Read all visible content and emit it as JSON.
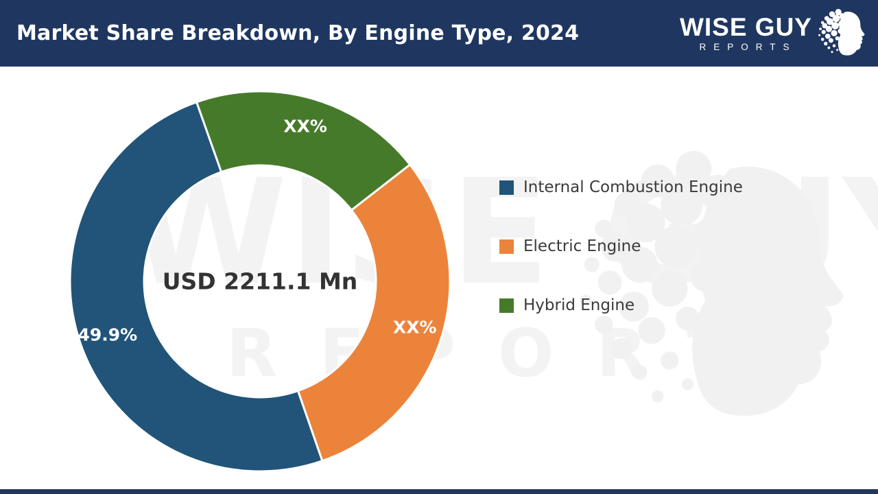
{
  "header": {
    "title": "Market Share Breakdown, By Engine Type, 2024",
    "logo": {
      "name": "WISE GUY",
      "sub": "REPORTS"
    }
  },
  "watermark": {
    "line1": "WISE GUY",
    "line2": "REPORTS"
  },
  "chart_data": {
    "type": "pie",
    "subtype": "donut",
    "title": "Market Share Breakdown, By Engine Type, 2024",
    "center_label": "USD 2211.1 Mn",
    "donut_hole_ratio": 0.61,
    "start_angle_deg": -19.5,
    "direction": "clockwise",
    "draw_order": [
      2,
      1,
      0
    ],
    "legend_position": "right",
    "slices": [
      {
        "name": "Internal Combustion Engine",
        "value_pct": 49.9,
        "label": "49.9%",
        "color": "#215478"
      },
      {
        "name": "Electric Engine",
        "value_pct": 30.2,
        "label": "XX%",
        "color": "#EC833B"
      },
      {
        "name": "Hybrid Engine",
        "value_pct": 19.9,
        "label": "XX%",
        "color": "#467A2B"
      }
    ],
    "colors": {
      "header_navy": "#1F3760",
      "slice_label_text": "#FFFFFF",
      "center_label_text": "#333333",
      "legend_text": "#3A3A3A",
      "watermark": "#F2F2F2"
    }
  }
}
